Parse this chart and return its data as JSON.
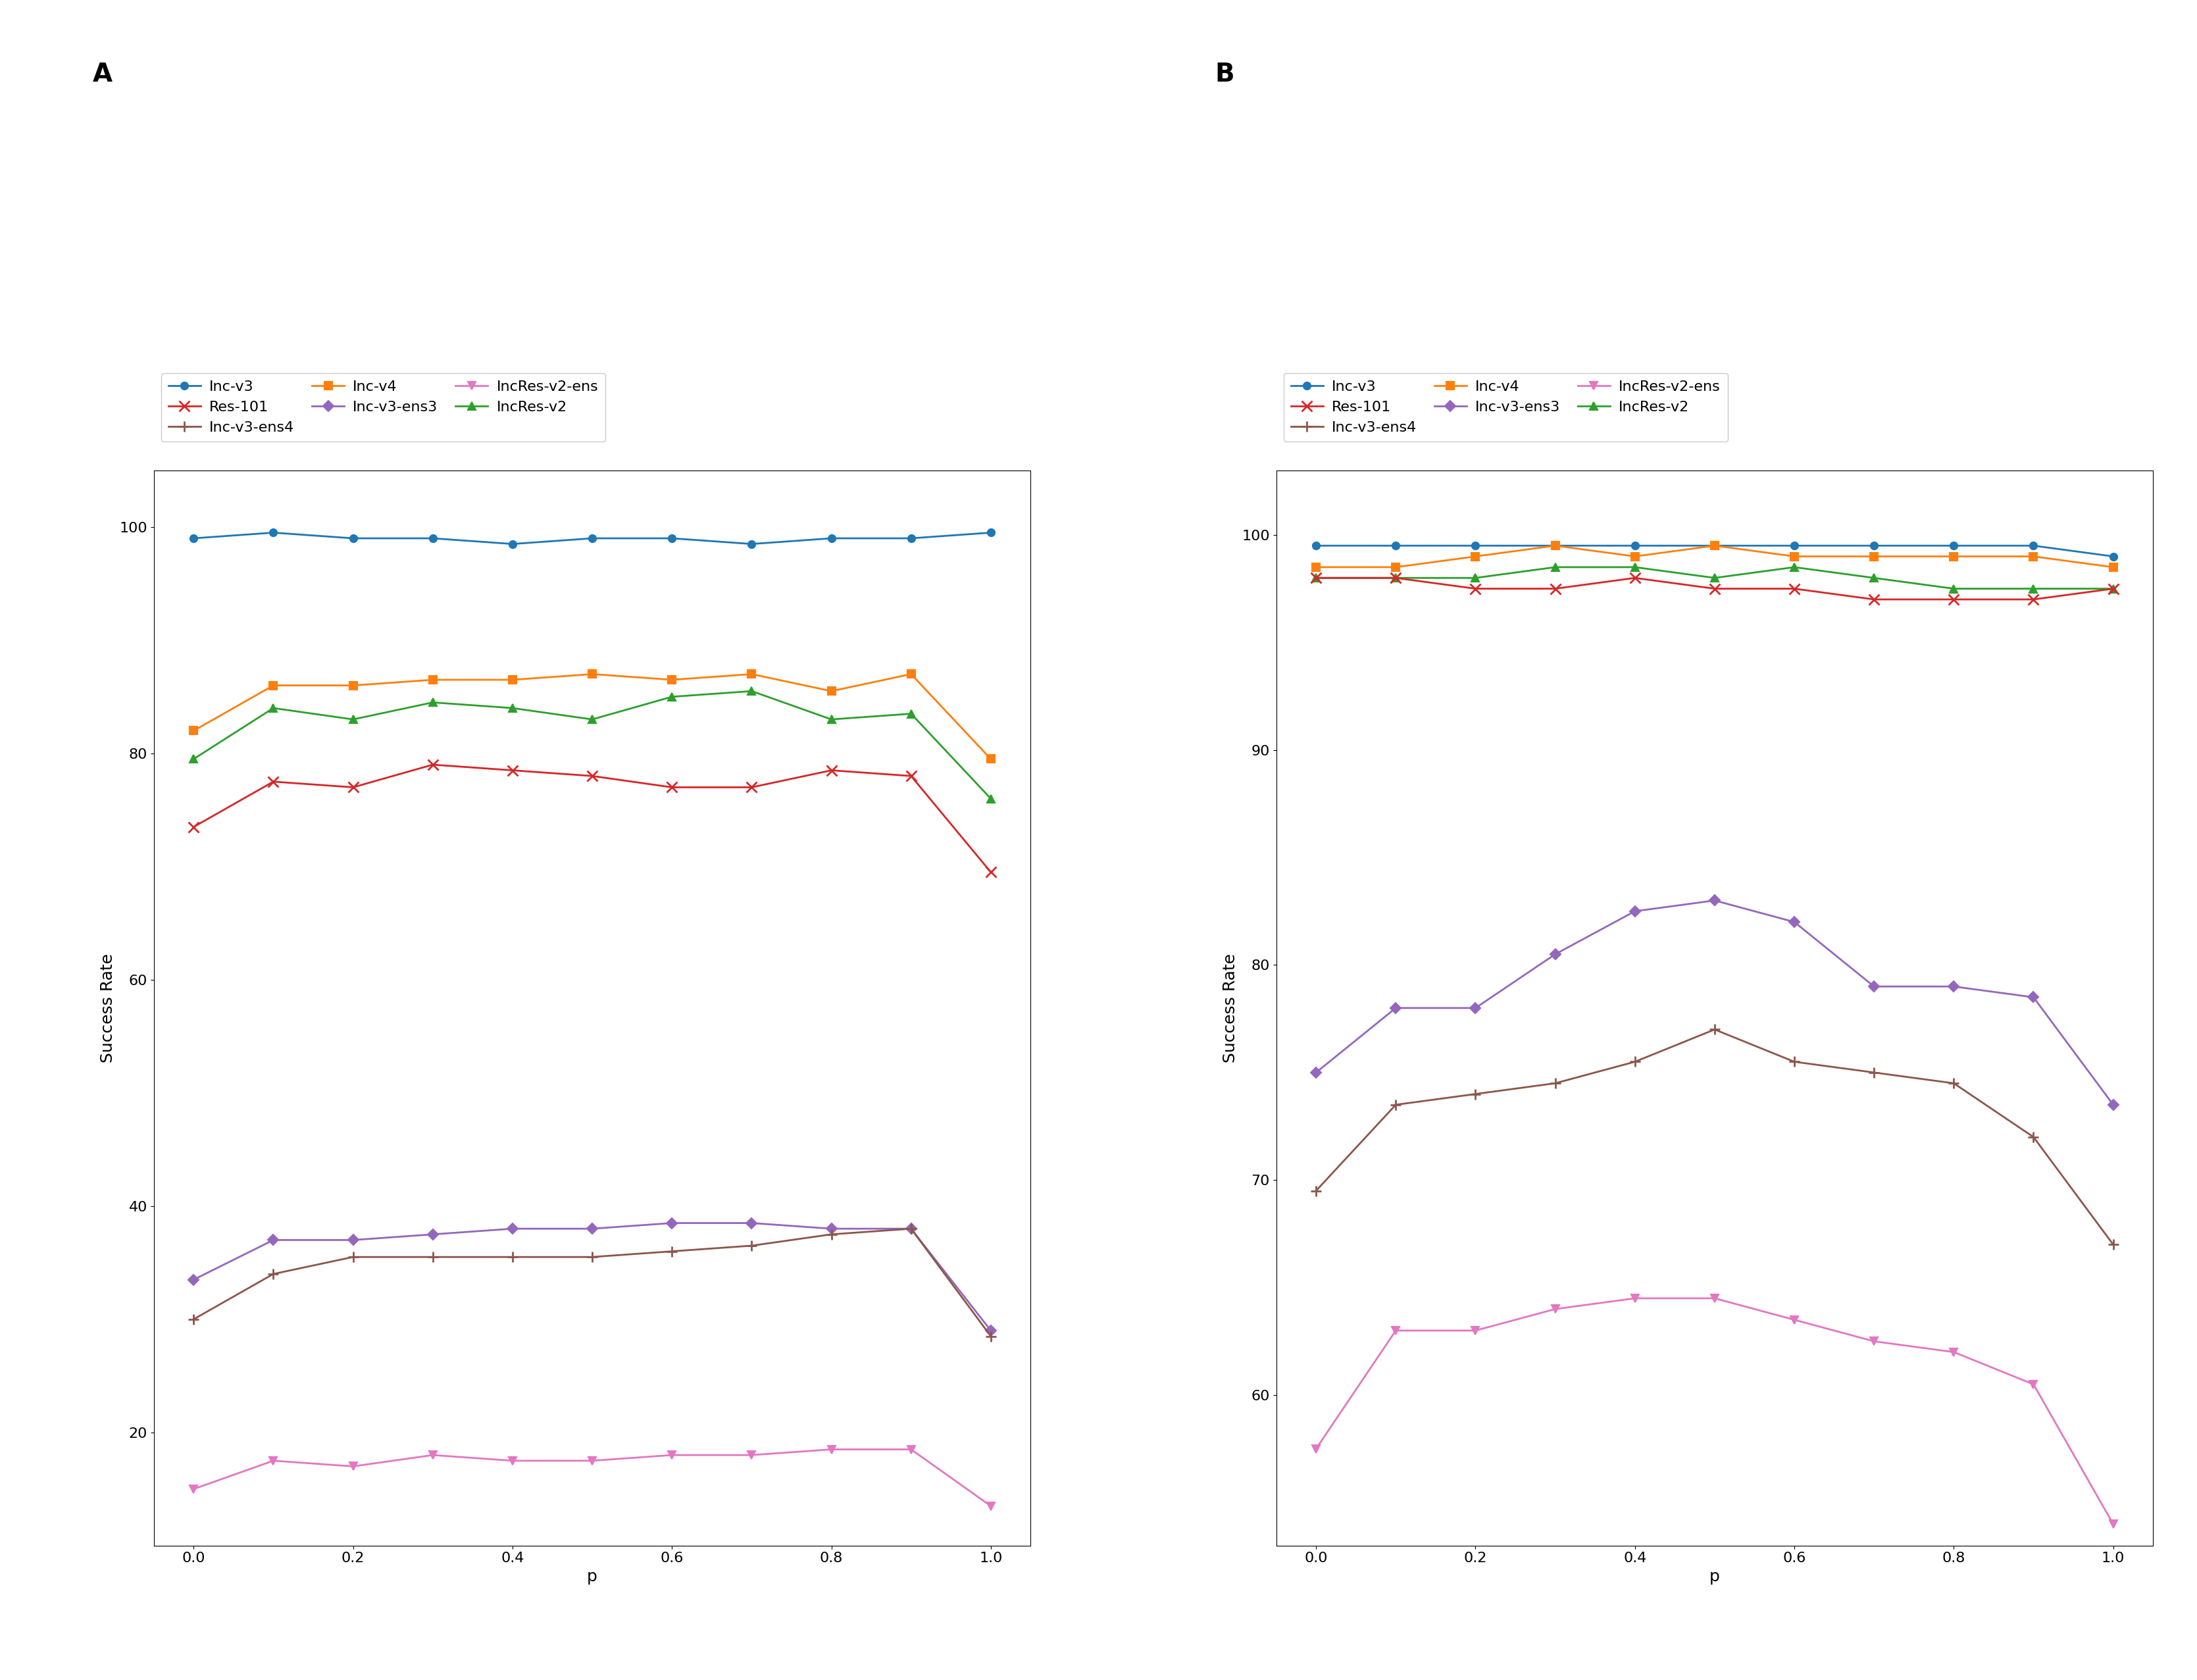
{
  "x": [
    0.0,
    0.1,
    0.2,
    0.3,
    0.4,
    0.5,
    0.6,
    0.7,
    0.8,
    0.9,
    1.0
  ],
  "panel_A": {
    "Inc-v3": [
      99.0,
      99.5,
      99.0,
      99.0,
      98.5,
      99.0,
      99.0,
      98.5,
      99.0,
      99.0,
      99.5
    ],
    "Inc-v4": [
      82.0,
      86.0,
      86.0,
      86.5,
      86.5,
      87.0,
      86.5,
      87.0,
      85.5,
      87.0,
      79.5
    ],
    "IncRes-v2": [
      79.5,
      84.0,
      83.0,
      84.5,
      84.0,
      83.0,
      85.0,
      85.5,
      83.0,
      83.5,
      76.0
    ],
    "Res-101": [
      73.5,
      77.5,
      77.0,
      79.0,
      78.5,
      78.0,
      77.0,
      77.0,
      78.5,
      78.0,
      69.5
    ],
    "Inc-v3-ens3": [
      33.5,
      37.0,
      37.0,
      37.5,
      38.0,
      38.0,
      38.5,
      38.5,
      38.0,
      38.0,
      29.0
    ],
    "Inc-v3-ens4": [
      30.0,
      34.0,
      35.5,
      35.5,
      35.5,
      35.5,
      36.0,
      36.5,
      37.5,
      38.0,
      28.5
    ],
    "IncRes-v2-ens": [
      15.0,
      17.5,
      17.0,
      18.0,
      17.5,
      17.5,
      18.0,
      18.0,
      18.5,
      18.5,
      13.5
    ]
  },
  "panel_B": {
    "Inc-v3": [
      99.5,
      99.5,
      99.5,
      99.5,
      99.5,
      99.5,
      99.5,
      99.5,
      99.5,
      99.5,
      99.0
    ],
    "Inc-v4": [
      98.5,
      98.5,
      99.0,
      99.5,
      99.0,
      99.5,
      99.0,
      99.0,
      99.0,
      99.0,
      98.5
    ],
    "IncRes-v2": [
      98.0,
      98.0,
      98.0,
      98.5,
      98.5,
      98.0,
      98.5,
      98.0,
      97.5,
      97.5,
      97.5
    ],
    "Res-101": [
      98.0,
      98.0,
      97.5,
      97.5,
      98.0,
      97.5,
      97.5,
      97.0,
      97.0,
      97.0,
      97.5
    ],
    "Inc-v3-ens3": [
      75.0,
      78.0,
      78.0,
      80.5,
      82.5,
      83.0,
      82.0,
      79.0,
      79.0,
      78.5,
      73.5
    ],
    "Inc-v3-ens4": [
      69.5,
      73.5,
      74.0,
      74.5,
      75.5,
      77.0,
      75.5,
      75.0,
      74.5,
      72.0,
      67.0
    ],
    "IncRes-v2-ens": [
      57.5,
      63.0,
      63.0,
      64.0,
      64.5,
      64.5,
      63.5,
      62.5,
      62.0,
      60.5,
      54.0
    ]
  },
  "series_styles": {
    "Inc-v3": {
      "color": "#1f77b4",
      "marker": "o",
      "linestyle": "-"
    },
    "Inc-v4": {
      "color": "#ff7f0e",
      "marker": "s",
      "linestyle": "-"
    },
    "IncRes-v2": {
      "color": "#2ca02c",
      "marker": "^",
      "linestyle": "-"
    },
    "Res-101": {
      "color": "#d62728",
      "marker": "x",
      "linestyle": "-"
    },
    "Inc-v3-ens3": {
      "color": "#9467bd",
      "marker": "D",
      "linestyle": "-"
    },
    "Inc-v3-ens4": {
      "color": "#8c564b",
      "marker": "+",
      "linestyle": "-"
    },
    "IncRes-v2-ens": {
      "color": "#e377c2",
      "marker": "v",
      "linestyle": "-"
    }
  },
  "legend_order": [
    "Inc-v3",
    "Res-101",
    "Inc-v3-ens4",
    "Inc-v4",
    "Inc-v3-ens3",
    "IncRes-v2-ens",
    "IncRes-v2"
  ],
  "ylabel": "Success Rate",
  "xlabel": "p",
  "panel_A_ylim": [
    10,
    105
  ],
  "panel_B_ylim": [
    53,
    103
  ],
  "panel_A_yticks": [
    20,
    40,
    60,
    80,
    100
  ],
  "panel_B_yticks": [
    60,
    70,
    80,
    90,
    100
  ],
  "xtick_labels": [
    "0.0",
    "0.2",
    "0.4",
    "0.6",
    "0.8",
    "1.0"
  ],
  "xticks": [
    0.0,
    0.2,
    0.4,
    0.6,
    0.8,
    1.0
  ],
  "markersize": 8,
  "linewidth": 2.0,
  "fontsize_label": 18,
  "fontsize_tick": 16,
  "fontsize_legend": 16,
  "fontsize_panel_label": 28
}
